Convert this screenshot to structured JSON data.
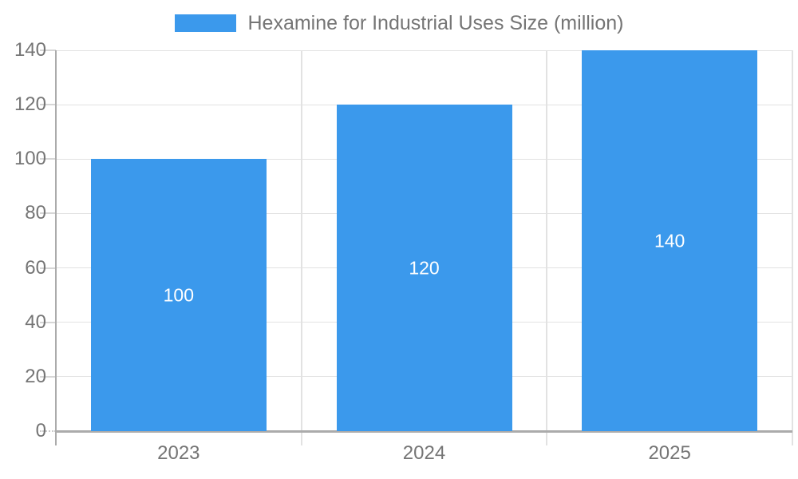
{
  "chart_data": {
    "type": "bar",
    "title": "",
    "legend_label": "Hexamine for Industrial Uses Size (million)",
    "legend_position": "top",
    "categories": [
      "2023",
      "2024",
      "2025"
    ],
    "values": [
      100,
      120,
      140
    ],
    "data_labels": [
      "100",
      "120",
      "140"
    ],
    "xlabel": "",
    "ylabel": "",
    "ylim": [
      0,
      140
    ],
    "yticks": [
      0,
      20,
      40,
      60,
      80,
      100,
      120,
      140
    ],
    "grid": true,
    "colors": {
      "bar": "#3b99ec",
      "grid": "#e2e2e2",
      "tick": "#d6d6d6",
      "axis": "#ababab",
      "label_text": "#757575",
      "data_label_text": "#ffffff",
      "background": "#ffffff"
    }
  }
}
